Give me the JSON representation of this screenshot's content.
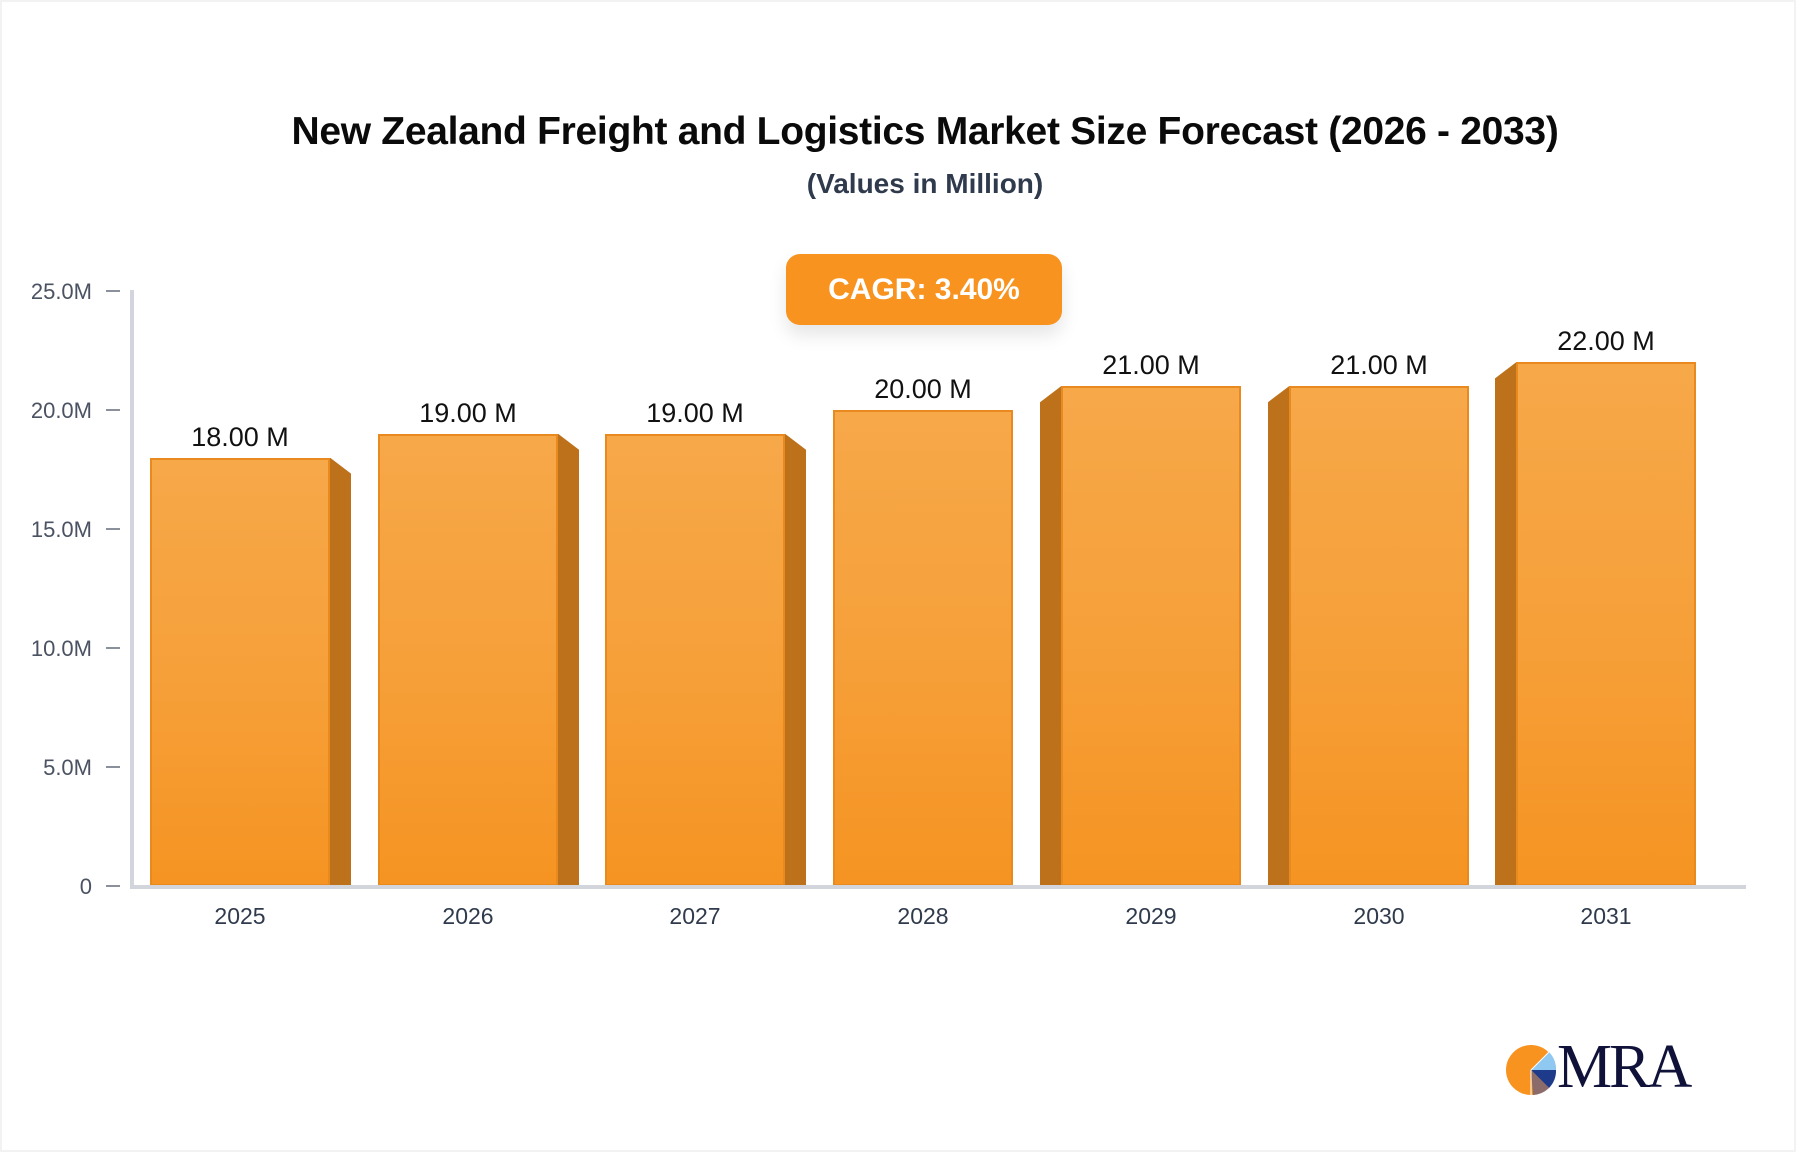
{
  "header": {
    "title": "New Zealand Freight and Logistics Market Size Forecast (2026 - 2033)",
    "subtitle": "(Values in Million)"
  },
  "badge": {
    "label": "CAGR: 3.40%",
    "color": "#F7931E"
  },
  "y_axis": {
    "ticks": [
      "0",
      "5.0M",
      "10.0M",
      "15.0M",
      "20.0M",
      "25.0M"
    ]
  },
  "bars": [
    {
      "year": "2025",
      "value_label": "18.00 M"
    },
    {
      "year": "2026",
      "value_label": "19.00 M"
    },
    {
      "year": "2027",
      "value_label": "19.00 M"
    },
    {
      "year": "2028",
      "value_label": "20.00 M"
    },
    {
      "year": "2029",
      "value_label": "21.00 M"
    },
    {
      "year": "2030",
      "value_label": "21.00 M"
    },
    {
      "year": "2031",
      "value_label": "22.00 M"
    }
  ],
  "logo": {
    "text": "MRA"
  },
  "colors": {
    "bar_front": "#F6A03A",
    "bar_side": "#BD711A",
    "axis": "#D2D5DB",
    "title": "#0A0A0A",
    "subtitle": "#2F3A4C"
  },
  "chart_data": {
    "type": "bar",
    "title": "New Zealand Freight and Logistics Market Size Forecast (2026 - 2033)",
    "subtitle": "(Values in Million)",
    "categories": [
      "2025",
      "2026",
      "2027",
      "2028",
      "2029",
      "2030",
      "2031"
    ],
    "values": [
      18.0,
      19.0,
      19.0,
      20.0,
      21.0,
      21.0,
      22.0
    ],
    "data_labels": [
      "18.00 M",
      "19.00 M",
      "19.00 M",
      "20.00 M",
      "21.00 M",
      "21.00 M",
      "22.00 M"
    ],
    "unit": "Million",
    "xlabel": "",
    "ylabel": "",
    "ylim": [
      0,
      25
    ],
    "y_ticks": [
      0,
      5,
      10,
      15,
      20,
      25
    ],
    "y_tick_labels": [
      "0",
      "5.0M",
      "10.0M",
      "15.0M",
      "20.0M",
      "25.0M"
    ],
    "annotations": [
      "CAGR: 3.40%"
    ],
    "grid": false,
    "legend": null,
    "style": "3d-bar"
  }
}
